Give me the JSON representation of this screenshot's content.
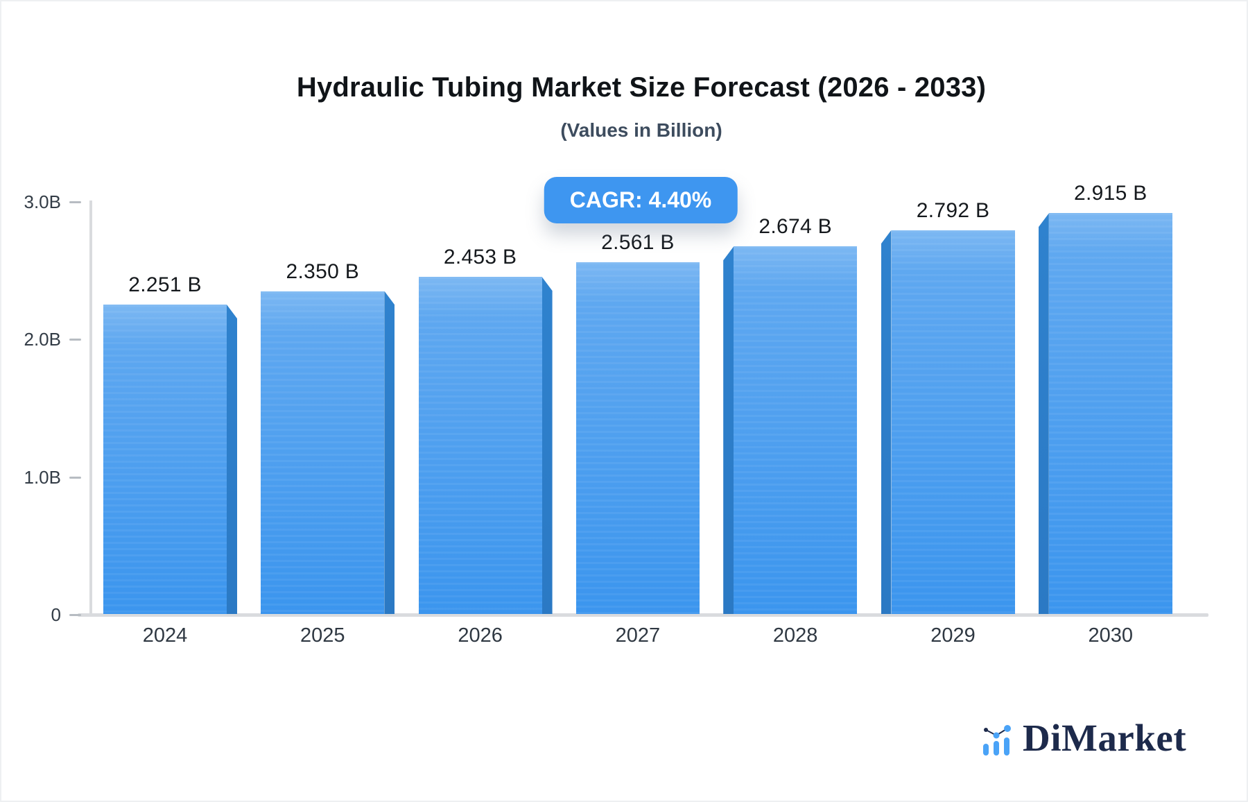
{
  "title": "Hydraulic Tubing Market Size Forecast (2026 - 2033)",
  "subtitle": "(Values in Billion)",
  "cagr_label": "CAGR: 4.40%",
  "logo": {
    "text": "DiMarket",
    "icon": "mini-bar-chart-icon"
  },
  "colors": {
    "bar_face_top": "#63AAF0",
    "bar_face_bottom": "#3B95EE",
    "bar_side": "#2D7CC8",
    "badge_bg": "#3E96F0",
    "badge_text": "#FFFFFF",
    "logo_navy": "#1D2A4B",
    "logo_blue": "#4AA3F7",
    "axis_line": "#D9DBDE",
    "tick": "#B7BCC2",
    "title_text": "#101418",
    "subtitle_text": "#3D4C5E"
  },
  "chart_data": {
    "type": "bar",
    "title": "Hydraulic Tubing Market Size Forecast (2026 - 2033)",
    "subtitle": "(Values in Billion)",
    "annotation": "CAGR: 4.40%",
    "categories": [
      "2024",
      "2025",
      "2026",
      "2027",
      "2028",
      "2029",
      "2030"
    ],
    "values": [
      2.251,
      2.35,
      2.453,
      2.561,
      2.674,
      2.792,
      2.915
    ],
    "value_labels": [
      "2.251 B",
      "2.350 B",
      "2.453 B",
      "2.561 B",
      "2.674 B",
      "2.792 B",
      "2.915 B"
    ],
    "xlabel": "",
    "ylabel": "",
    "ylim": [
      0,
      3.0
    ],
    "y_ticks": [
      {
        "label": "3.0B",
        "value": 3
      },
      {
        "label": "2.0B",
        "value": 2
      },
      {
        "label": "1.0B",
        "value": 1
      },
      {
        "label": "0",
        "value": 0
      }
    ],
    "grid": false,
    "legend": false,
    "bar_style": "3d-extruded-toward-center"
  }
}
